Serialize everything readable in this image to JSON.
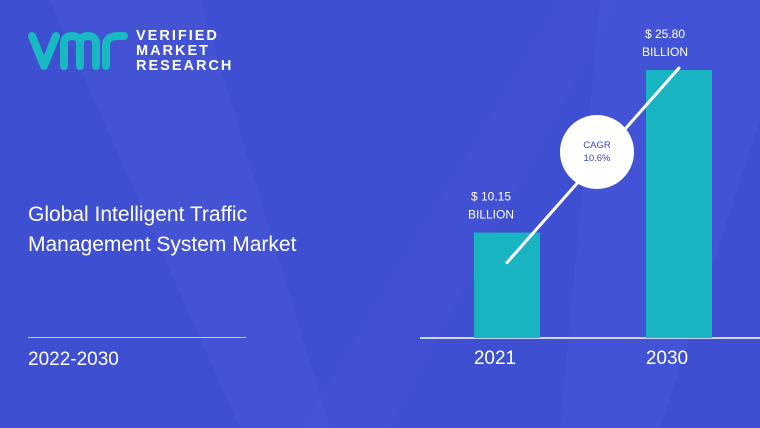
{
  "brand": {
    "line1": "VERIFIED",
    "line2": "MARKET",
    "line3": "RESEARCH",
    "logo_color": "#19b9c3"
  },
  "title": "Global Intelligent Traffic Management System Market",
  "period": "2022-2030",
  "colors": {
    "background": "#3f4fd1",
    "bar": "#19b4c2",
    "text": "#ffffff",
    "cagr_circle": "#ffffff",
    "cagr_text": "#3446c8"
  },
  "chart_data": {
    "type": "bar",
    "categories": [
      "2021",
      "2030"
    ],
    "values": [
      10.15,
      25.8
    ],
    "value_labels": [
      [
        "$ 10.15",
        "BILLION"
      ],
      [
        "$ 25.80",
        "BILLION"
      ]
    ],
    "cagr_label": [
      "CAGR",
      "10.6%"
    ],
    "ylim": [
      0,
      28.5
    ],
    "grid": false,
    "legend": "none"
  }
}
